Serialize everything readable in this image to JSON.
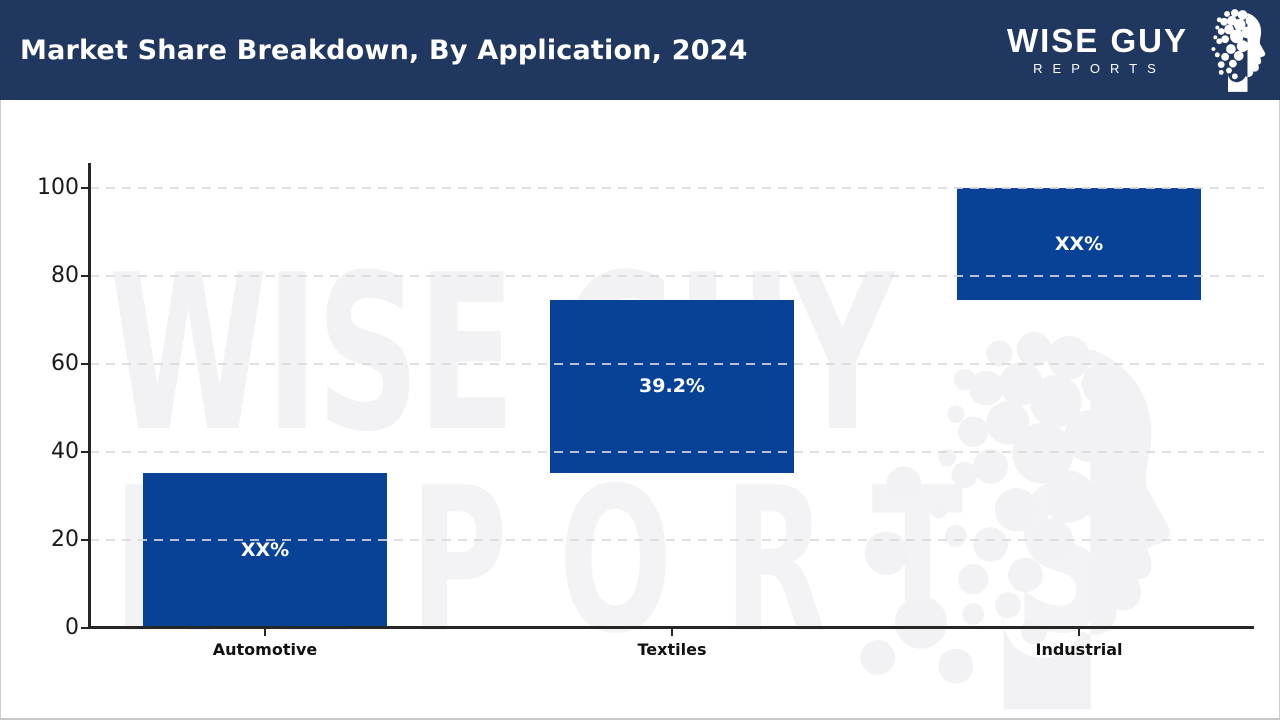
{
  "header": {
    "title": "Market Share Breakdown, By Application, 2024",
    "logo": {
      "wordmark": "WISE GUY",
      "subtext": "REPORTS"
    }
  },
  "watermark": {
    "line1": "WISE GUY",
    "line2": "REPORTS"
  },
  "chart_data": {
    "type": "bar",
    "subtype": "floating-segment bars (stacked waterfall of market share)",
    "title": "Market Share Breakdown, By Application, 2024",
    "categories": [
      "Automotive",
      "Textiles",
      "Industrial"
    ],
    "segments": [
      {
        "category": "Automotive",
        "start": 0,
        "end": 35.3,
        "value_label": "XX%"
      },
      {
        "category": "Textiles",
        "start": 35.3,
        "end": 74.5,
        "value_label": "39.2%"
      },
      {
        "category": "Industrial",
        "start": 74.5,
        "end": 100,
        "value_label": "XX%"
      }
    ],
    "xlabel": "",
    "ylabel": "",
    "ylim": [
      0,
      100
    ],
    "yticks": [
      0,
      20,
      40,
      60,
      80,
      100
    ],
    "grid": {
      "horizontal": true,
      "style": "dashed",
      "drawn_above_bars": true
    },
    "legend": "none",
    "colors": {
      "bar": "#084296",
      "header_bg": "#20375f",
      "grid": "#d9d9d9",
      "axis": "#262626",
      "bar_label_text": "#ffffff",
      "watermark": "#f2f2f4"
    }
  }
}
